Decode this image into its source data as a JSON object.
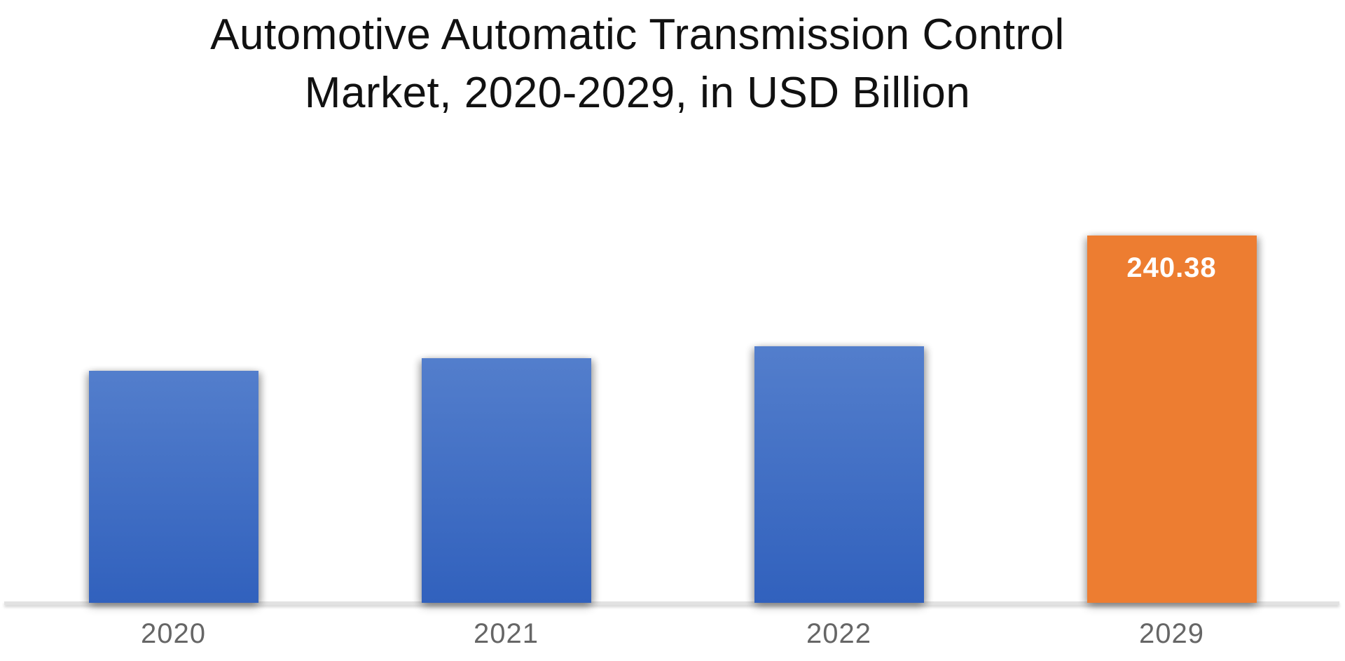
{
  "chart_data": {
    "type": "bar",
    "title": "Automotive Automatic Transmission Control Market, 2020-2029, in USD Billion",
    "title_lines": [
      "Automotive Automatic Transmission Control",
      "Market, 2020-2029, in USD Billion"
    ],
    "categories": [
      "2020",
      "2021",
      "2022",
      "2029"
    ],
    "values": [
      152,
      160,
      168,
      240.38
    ],
    "data_labels": [
      "",
      "",
      "",
      "240.38"
    ],
    "xlabel": "",
    "ylabel": "",
    "ylim": [
      0,
      260
    ],
    "grid": false,
    "legend": "none",
    "highlight_category": "2029"
  },
  "colors": {
    "background": "#FFFFFF",
    "title": "#111111",
    "bar_blue_top": "#537ECC",
    "bar_blue_bottom": "#3161BD",
    "bar_highlight_orange": "#ED7D31",
    "data_label": "#FFFFFF",
    "axis_line": "#E2E2E2",
    "tick_label": "#666666"
  }
}
